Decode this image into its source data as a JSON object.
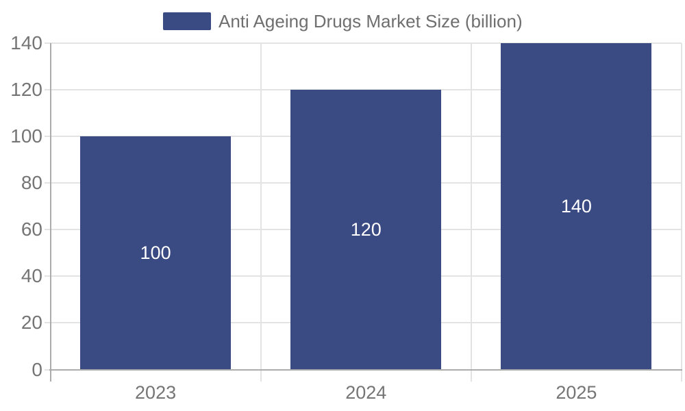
{
  "legend": {
    "label": "Anti Ageing Drugs Market Size (billion)"
  },
  "colors": {
    "bar": "#3A4A82",
    "bar_label": "#FFFFFF",
    "gridline": "#E3E3E3",
    "axis_line": "#ACACAC",
    "tick_label": "#757575",
    "legend_text": "#6F6F6F",
    "background": "#FFFFFF"
  },
  "chart_data": {
    "type": "bar",
    "title": "Anti Ageing Drugs Market Size (billion)",
    "series_name": "Anti Ageing Drugs Market Size (billion)",
    "categories": [
      "2023",
      "2024",
      "2025"
    ],
    "values": [
      100,
      120,
      140
    ],
    "bar_labels": [
      "100",
      "120",
      "140"
    ],
    "bar_label_position": "inside-center",
    "xlabel": "",
    "ylabel": "",
    "ylim": [
      0,
      140
    ],
    "yticks": [
      0,
      20,
      40,
      60,
      80,
      100,
      120,
      140
    ],
    "grid": true,
    "legend_position": "top-center"
  }
}
